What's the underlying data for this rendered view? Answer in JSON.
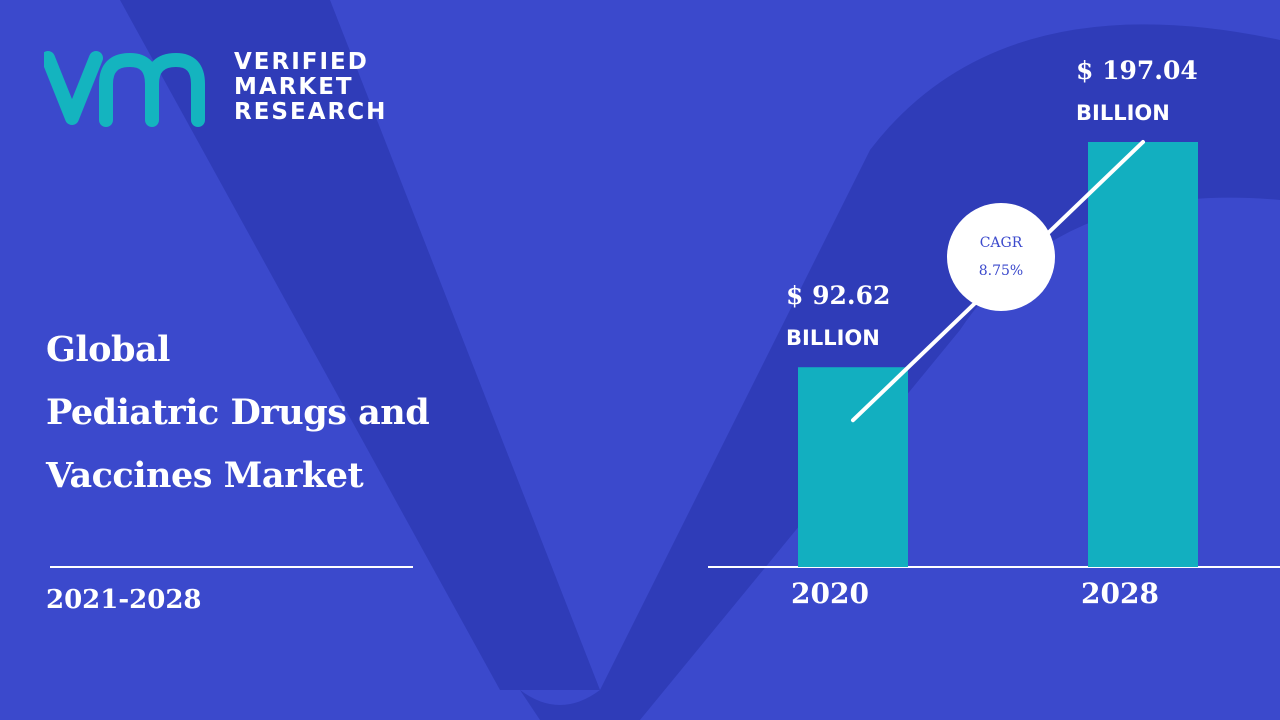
{
  "brand": {
    "line1": "VERIFIED",
    "line2": "MARKET",
    "line3": "RESEARCH",
    "accent_color": "#14b4bf"
  },
  "title": {
    "line1": "Global",
    "line2": "Pediatric Drugs and",
    "line3": "Vaccines Market"
  },
  "period": "2021-2028",
  "cagr": {
    "label": "CAGR",
    "value": "8.75%"
  },
  "colors": {
    "background": "#3b49cc",
    "bar": "#12afc0",
    "text": "#ffffff"
  },
  "chart_data": {
    "type": "bar",
    "categories": [
      "2020",
      "2028"
    ],
    "values": [
      92.62,
      197.04
    ],
    "value_labels": [
      "$ 92.62",
      "$ 197.04"
    ],
    "unit_labels": [
      "BILLION",
      "BILLION"
    ],
    "title": "",
    "xlabel": "",
    "ylabel": "",
    "grid": false
  }
}
